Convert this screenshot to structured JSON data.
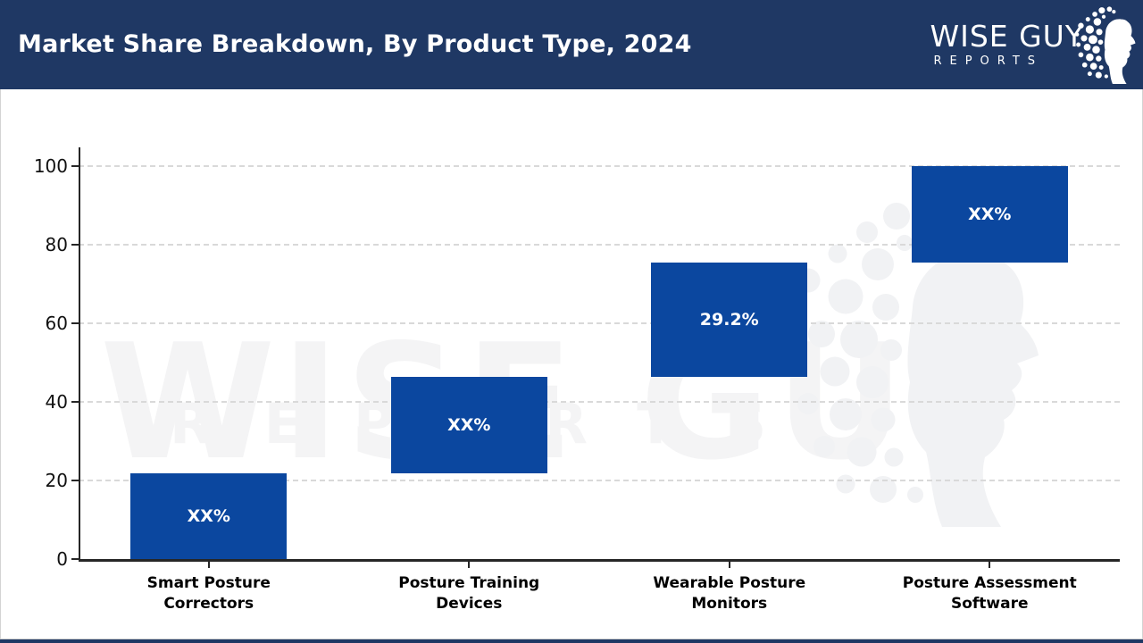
{
  "header": {
    "logo": {
      "wordmark": "WISE GUY",
      "subtitle": "REPORTS"
    }
  },
  "watermark": {
    "wordmark": "WISE GU",
    "subtitle": "REPORTS"
  },
  "colors": {
    "header_bg": "#1f3864",
    "footer_bg": "#1f3864",
    "bar": "#0b479f",
    "bar_label": "#ffffff",
    "grid": "#d9d9d9",
    "axis": "#262626",
    "tick_text": "#111111"
  },
  "chart_data": {
    "type": "bar",
    "subtype": "waterfall",
    "title": "Market Share Breakdown, By Product Type, 2024",
    "categories": [
      "Smart Posture\nCorrectors",
      "Posture Training\nDevices",
      "Wearable Posture\nMonitors",
      "Posture Assessment\nSoftware"
    ],
    "segments": [
      {
        "start": 0,
        "end": 21.9,
        "label": "XX%"
      },
      {
        "start": 21.9,
        "end": 46.3,
        "label": "XX%"
      },
      {
        "start": 46.3,
        "end": 75.4,
        "label": "29.2%"
      },
      {
        "start": 75.4,
        "end": 100,
        "label": "XX%"
      }
    ],
    "xlabel": "",
    "ylabel": "",
    "ylim": [
      0,
      100
    ],
    "yticks": [
      0,
      20,
      40,
      60,
      80,
      100
    ],
    "grid": "horizontal-dashed",
    "legend": "none"
  }
}
